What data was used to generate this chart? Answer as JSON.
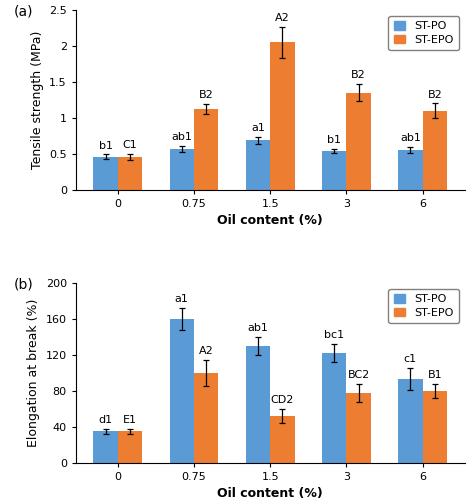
{
  "categories": [
    "0",
    "0.75",
    "1.5",
    "3",
    "6"
  ],
  "panel_a": {
    "title": "(a)",
    "ylabel": "Tensile strength (MPa)",
    "xlabel": "Oil content (%)",
    "ylim": [
      0,
      2.5
    ],
    "yticks": [
      0.0,
      0.5,
      1.0,
      1.5,
      2.0,
      2.5
    ],
    "ytick_labels": [
      "0",
      "0.5",
      "1",
      "1.5",
      "2",
      "2.5"
    ],
    "stpo_values": [
      0.46,
      0.57,
      0.69,
      0.54,
      0.55
    ],
    "stepo_values": [
      0.46,
      1.12,
      2.05,
      1.35,
      1.1
    ],
    "stpo_errors": [
      0.03,
      0.04,
      0.05,
      0.03,
      0.04
    ],
    "stepo_errors": [
      0.04,
      0.07,
      0.22,
      0.12,
      0.1
    ],
    "stpo_labels": [
      "b1",
      "ab1",
      "a1",
      "b1",
      "ab1"
    ],
    "stepo_labels": [
      "C1",
      "B2",
      "A2",
      "B2",
      "B2"
    ]
  },
  "panel_b": {
    "title": "(b)",
    "ylabel": "Elongation at break (%)",
    "xlabel": "Oil content (%)",
    "ylim": [
      0,
      200
    ],
    "yticks": [
      0,
      40,
      80,
      120,
      160,
      200
    ],
    "ytick_labels": [
      "0",
      "40",
      "80",
      "120",
      "160",
      "200"
    ],
    "stpo_values": [
      35,
      160,
      130,
      122,
      93
    ],
    "stepo_values": [
      35,
      100,
      52,
      78,
      80
    ],
    "stpo_errors": [
      3,
      12,
      10,
      10,
      12
    ],
    "stepo_errors": [
      3,
      14,
      8,
      10,
      8
    ],
    "stpo_labels": [
      "d1",
      "a1",
      "ab1",
      "bc1",
      "c1"
    ],
    "stepo_labels": [
      "E1",
      "A2",
      "CD2",
      "BC2",
      "B1"
    ]
  },
  "color_stpo": "#5B9BD5",
  "color_stepo": "#ED7D31",
  "bar_width": 0.32,
  "legend_labels": [
    "ST-PO",
    "ST-EPO"
  ],
  "label_fontsize": 8,
  "tick_fontsize": 8,
  "axis_label_fontsize": 9,
  "annotation_fontsize": 8
}
